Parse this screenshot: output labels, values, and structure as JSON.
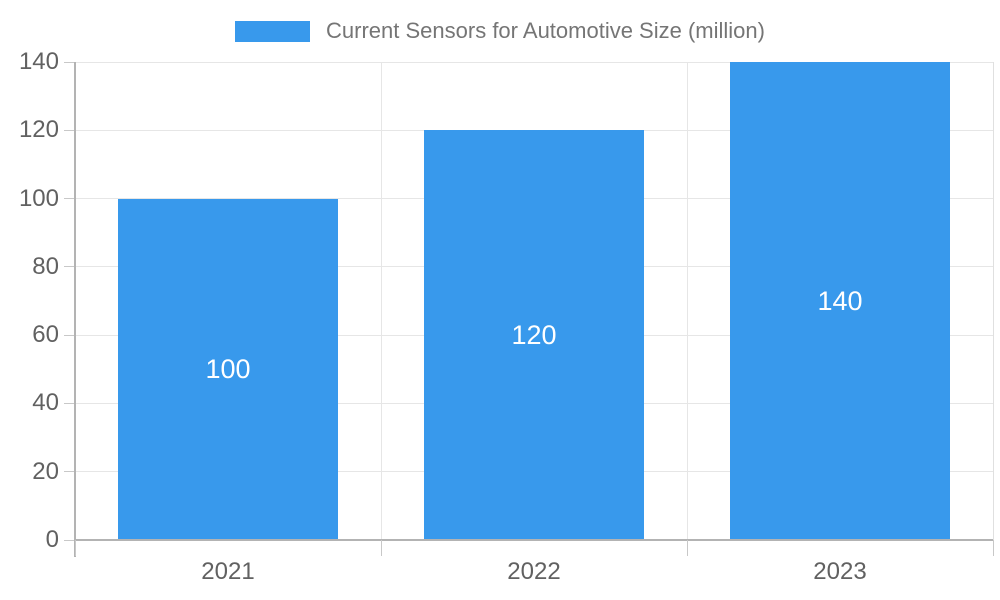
{
  "chart_data": {
    "type": "bar",
    "title": "Current Sensors for Automotive Size (million)",
    "categories": [
      "2021",
      "2022",
      "2023"
    ],
    "values": [
      100,
      120,
      140
    ],
    "bar_value_labels": [
      "100",
      "120",
      "140"
    ],
    "yticks": [
      0,
      20,
      40,
      60,
      80,
      100,
      120,
      140
    ],
    "ylim": [
      0,
      140
    ],
    "xlabel": "",
    "ylabel": "",
    "grid": true,
    "legend_position": "top-center",
    "colors": {
      "bar": "#3899ec",
      "bar_label_text": "#ffffff",
      "axis_text": "#616161",
      "legend_text": "#757575",
      "gridline": "#e6e6e6",
      "axis_line": "#b3b3b3",
      "tick_line": "#c8c8c8",
      "background": "#ffffff"
    }
  }
}
